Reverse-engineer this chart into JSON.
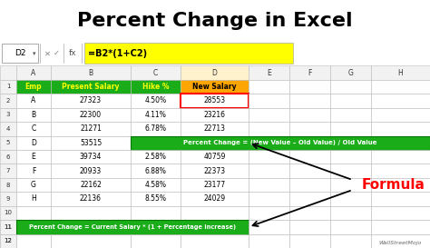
{
  "title": "Percent Change in Excel",
  "title_color": "#000000",
  "title_fontsize": 16,
  "bg_color": "#FFFFFF",
  "formula_bar_cell": "D2",
  "formula_bar_text": "=B2*(1+C2)",
  "formula_bar_bg": "#FFFF00",
  "formula_bar_outer_bg": "#F2F2F2",
  "col_letters": [
    "",
    "A",
    "B",
    "C",
    "D",
    "E",
    "F",
    "G",
    "H"
  ],
  "table_headers": [
    "Emp",
    "Present Salary",
    "Hike %",
    "New Salary"
  ],
  "header_bg": "#1AAD19",
  "header_text_color": "#FFFF00",
  "d_header_bg": "#FFA500",
  "d_header_text_color": "#000000",
  "d_col_header_bg": "#FFF2CC",
  "data": [
    [
      "A",
      "27323",
      "4.50%",
      "28553"
    ],
    [
      "B",
      "22300",
      "4.11%",
      "23216"
    ],
    [
      "C",
      "21271",
      "6.78%",
      "22713"
    ],
    [
      "D",
      "53515",
      "",
      ""
    ],
    [
      "E",
      "39734",
      "2.58%",
      "40759"
    ],
    [
      "F",
      "20933",
      "6.88%",
      "22373"
    ],
    [
      "G",
      "22162",
      "4.58%",
      "23177"
    ],
    [
      "H",
      "22136",
      "8.55%",
      "24029"
    ]
  ],
  "d2_border_color": "#FF0000",
  "formula1_text": "Percent Change = (New Value – Old Value) / Old Value",
  "formula1_bg": "#1AAD19",
  "formula1_text_color": "#FFFFFF",
  "formula2_text": "Percent Change = Current Salary * (1 + Percentage Increase)",
  "formula2_bg": "#1AAD19",
  "formula2_text_color": "#FFFFFF",
  "formula_label": "Formula",
  "formula_label_color": "#FF0000",
  "watermark": "WallStreetMojo",
  "grid_color": "#BBBBBB",
  "row_num_bg": "#F2F2F2",
  "col_header_bg": "#F2F2F2"
}
